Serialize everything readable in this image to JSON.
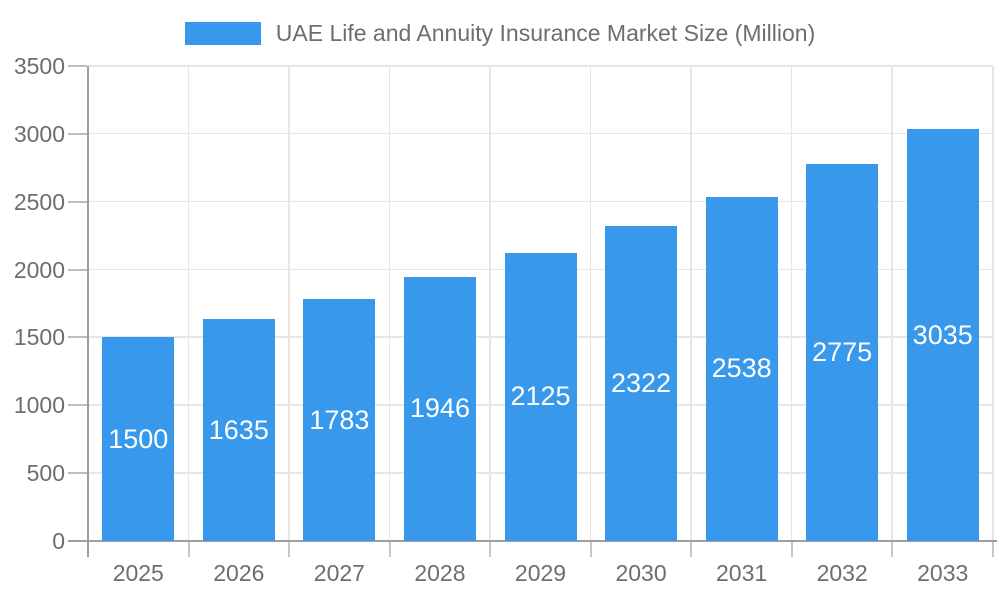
{
  "chart_data": {
    "type": "bar",
    "title": "UAE Life and Annuity Insurance Market Size (Million)",
    "series": [
      {
        "name": "UAE Life and Annuity Insurance Market Size (Million)",
        "values": [
          1500,
          1635,
          1783,
          1946,
          2125,
          2322,
          2538,
          2775,
          3035
        ]
      }
    ],
    "categories": [
      "2025",
      "2026",
      "2027",
      "2028",
      "2029",
      "2030",
      "2031",
      "2032",
      "2033"
    ],
    "values": [
      1500,
      1635,
      1783,
      1946,
      2125,
      2322,
      2538,
      2775,
      3035
    ],
    "xlabel": "",
    "ylabel": "",
    "ylim": [
      0,
      3500
    ],
    "yticks": [
      0,
      500,
      1000,
      1500,
      2000,
      2500,
      3000,
      3500
    ],
    "grid": true,
    "legend_position": "top",
    "bar_labels_inside": true,
    "colors": {
      "bar": "#3898EC",
      "bar_label": "#FFFFFF",
      "axis_text": "#6E6E6E",
      "axis_line": "#9E9E9E",
      "gridline": "#E6E6E6",
      "background": "#FFFFFF"
    }
  }
}
